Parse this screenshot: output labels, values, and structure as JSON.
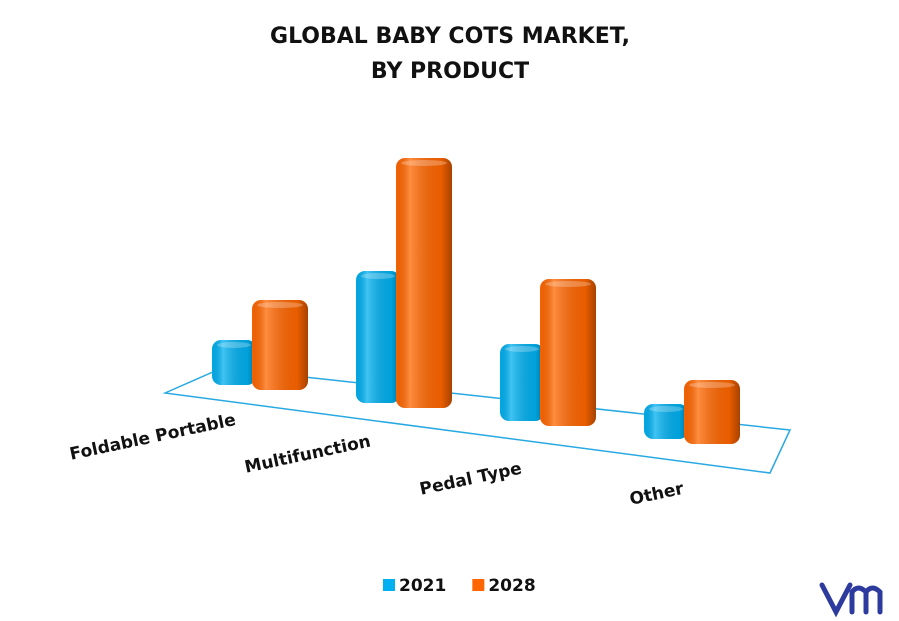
{
  "chart_data": {
    "type": "bar3d",
    "title": [
      "GLOBAL BABY COTS MARKET,",
      "BY PRODUCT"
    ],
    "categories": [
      "Foldable Portable",
      "Multifunction",
      "Pedal Type",
      "Other"
    ],
    "series": [
      {
        "name": "2021",
        "color": "#00b0f0",
        "values": [
          45,
          132,
          77,
          35
        ]
      },
      {
        "name": "2028",
        "color": "#ff6600",
        "values": [
          90,
          250,
          147,
          64
        ]
      }
    ],
    "legend": "bottom"
  }
}
